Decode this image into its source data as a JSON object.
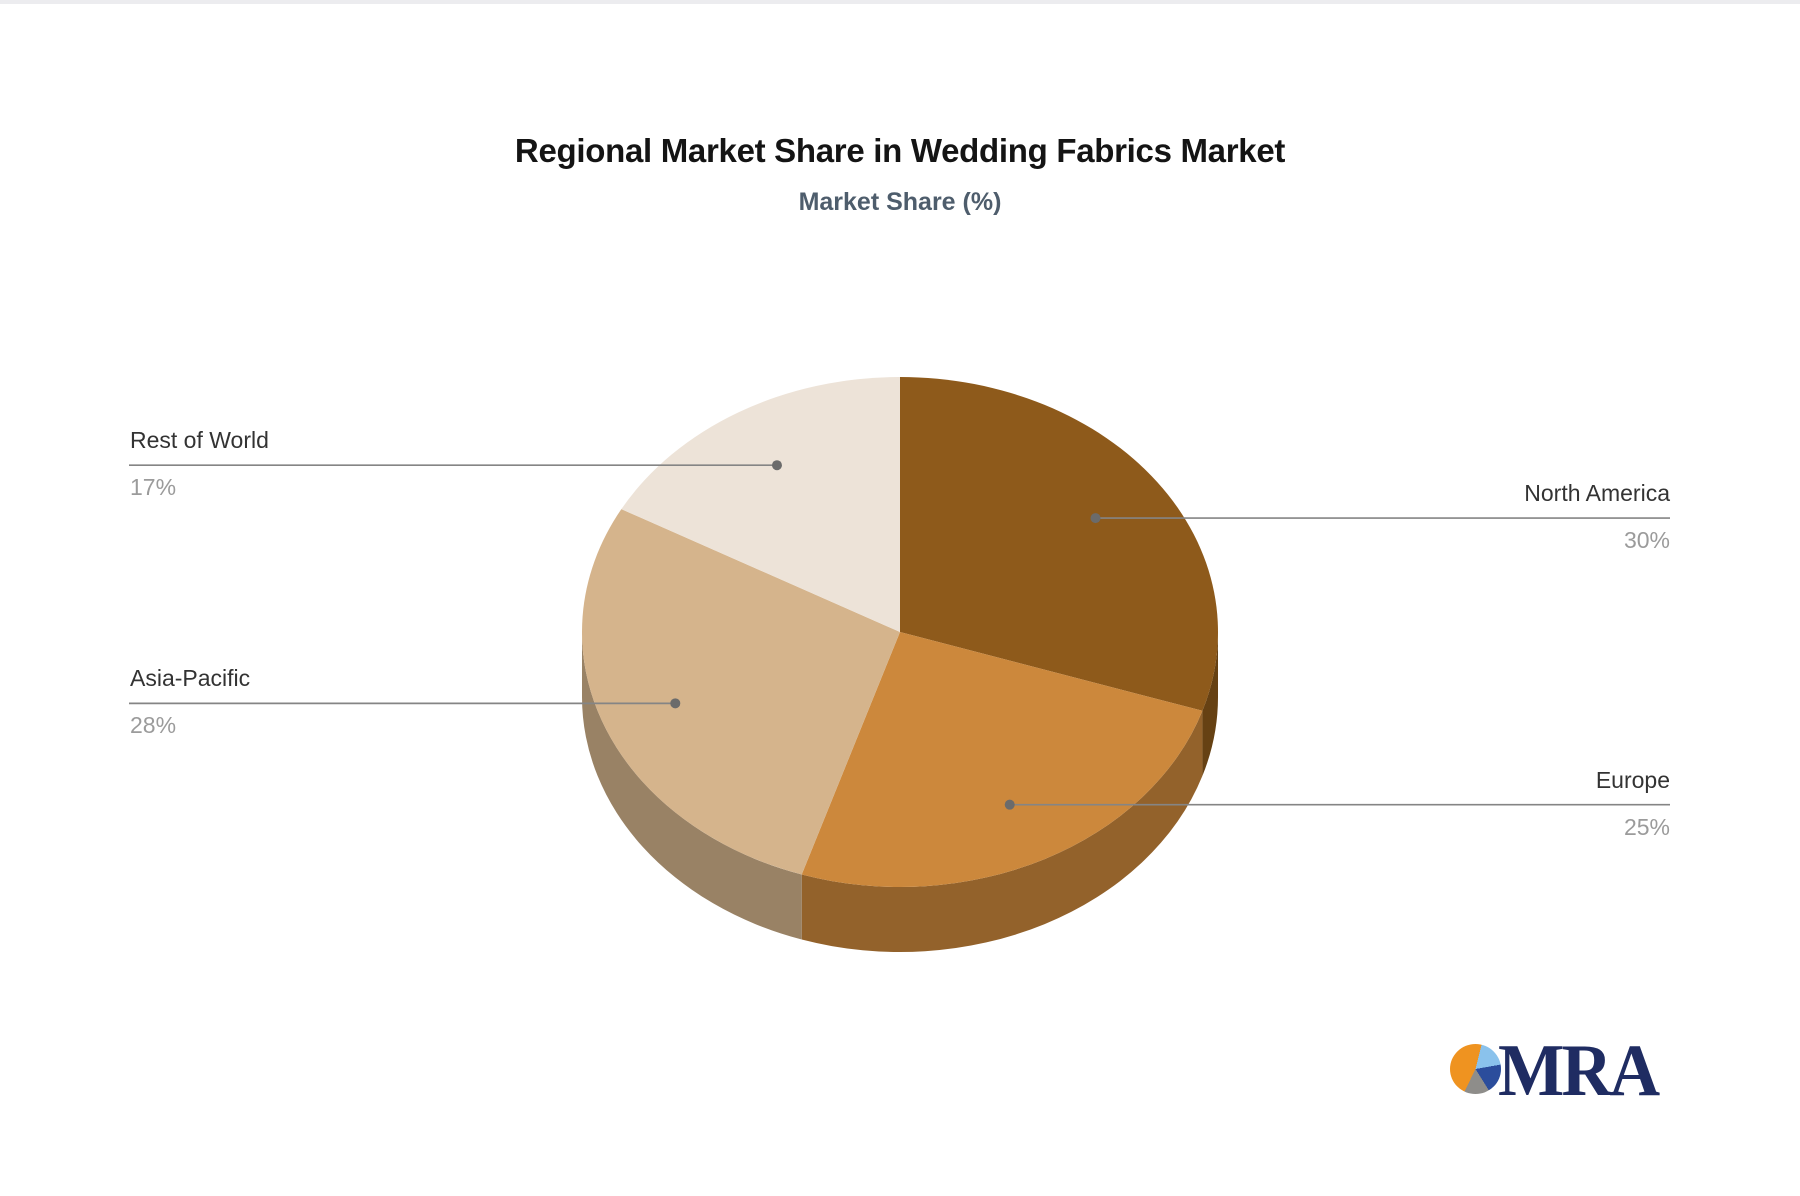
{
  "chart_data": {
    "type": "pie",
    "is_3d": true,
    "title": "Regional Market Share in Wedding Fabrics Market",
    "subtitle": "Market Share (%)",
    "start_angle_deg": 0,
    "direction": "clockwise",
    "legend_position": "none",
    "labels": "outside-with-connector-lines",
    "slices": [
      {
        "name": "North America",
        "value": 30,
        "pct": "30%",
        "color": "#8E5A1B"
      },
      {
        "name": "Europe",
        "value": 25,
        "pct": "25%",
        "color": "#CC883C"
      },
      {
        "name": "Asia-Pacific",
        "value": 28,
        "pct": "28%",
        "color": "#D5B48C"
      },
      {
        "name": "Rest of World",
        "value": 17,
        "pct": "17%",
        "color": "#EDE3D8"
      }
    ],
    "colors": {
      "label_name": "#333333",
      "label_pct": "#9b9b9b",
      "connector_line": "#858585",
      "connector_dot": "#6b6b6b",
      "title": "#141414",
      "subtitle": "#4e5d6c"
    }
  },
  "logo": {
    "text": "MRA",
    "text_color": "#1f2c62",
    "icon_colors": {
      "orange": "#ef9320",
      "light_blue": "#8ac2ec",
      "navy": "#2b4d9c",
      "gray": "#8e8d8a"
    }
  }
}
